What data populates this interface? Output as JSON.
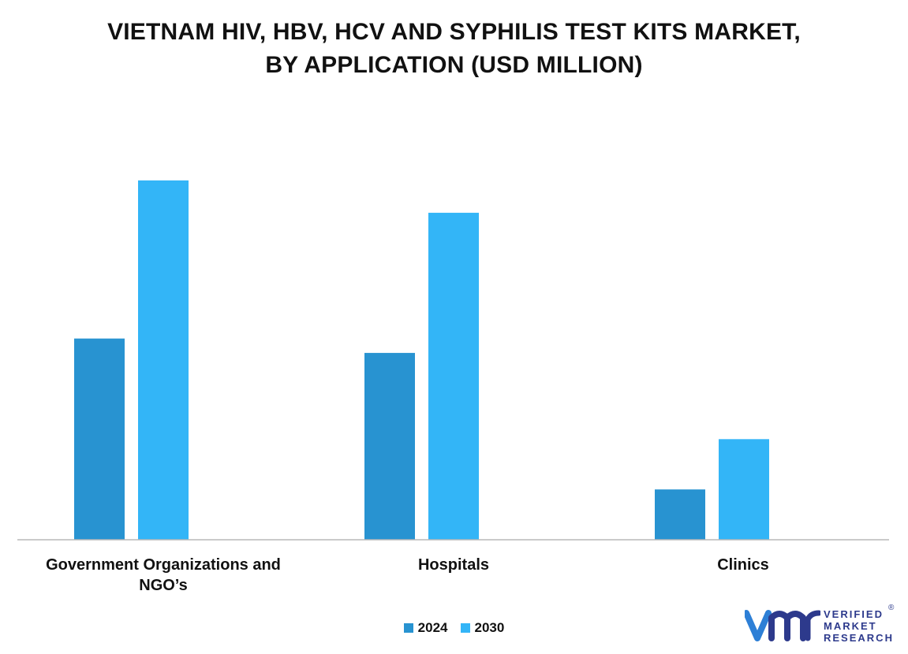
{
  "title_line1": "VIETNAM HIV, HBV, HCV AND SYPHILIS TEST KITS MARKET,",
  "title_line2": "BY APPLICATION (USD MILLION)",
  "chart_data": {
    "type": "bar",
    "title": "VIETNAM HIV, HBV, HCV AND SYPHILIS TEST KITS MARKET, BY APPLICATION (USD MILLION)",
    "categories": [
      "Government Organizations and NGO’s",
      "Hospitals",
      "Clinics"
    ],
    "series": [
      {
        "name": "2024",
        "values": [
          56,
          52,
          14
        ],
        "color": "#2893d1"
      },
      {
        "name": "2030",
        "values": [
          100,
          91,
          28
        ],
        "color": "#33b5f7"
      }
    ],
    "ylim": [
      0,
      100
    ],
    "grid": false,
    "legend_position": "bottom-center",
    "xlabel": "",
    "ylabel": ""
  },
  "labels": {
    "cat0_line1": "Government Organizations and",
    "cat0_line2": "NGO’s",
    "cat1": "Hospitals",
    "cat2": "Clinics"
  },
  "legend": {
    "item0": "2024",
    "item1": "2030"
  },
  "logo": {
    "icon": "vmr-logo-icon",
    "line1": "VERIFIED",
    "line2": "MARKET",
    "line3": "RESEARCH",
    "registered": "®",
    "color": "#2d3a8c"
  }
}
